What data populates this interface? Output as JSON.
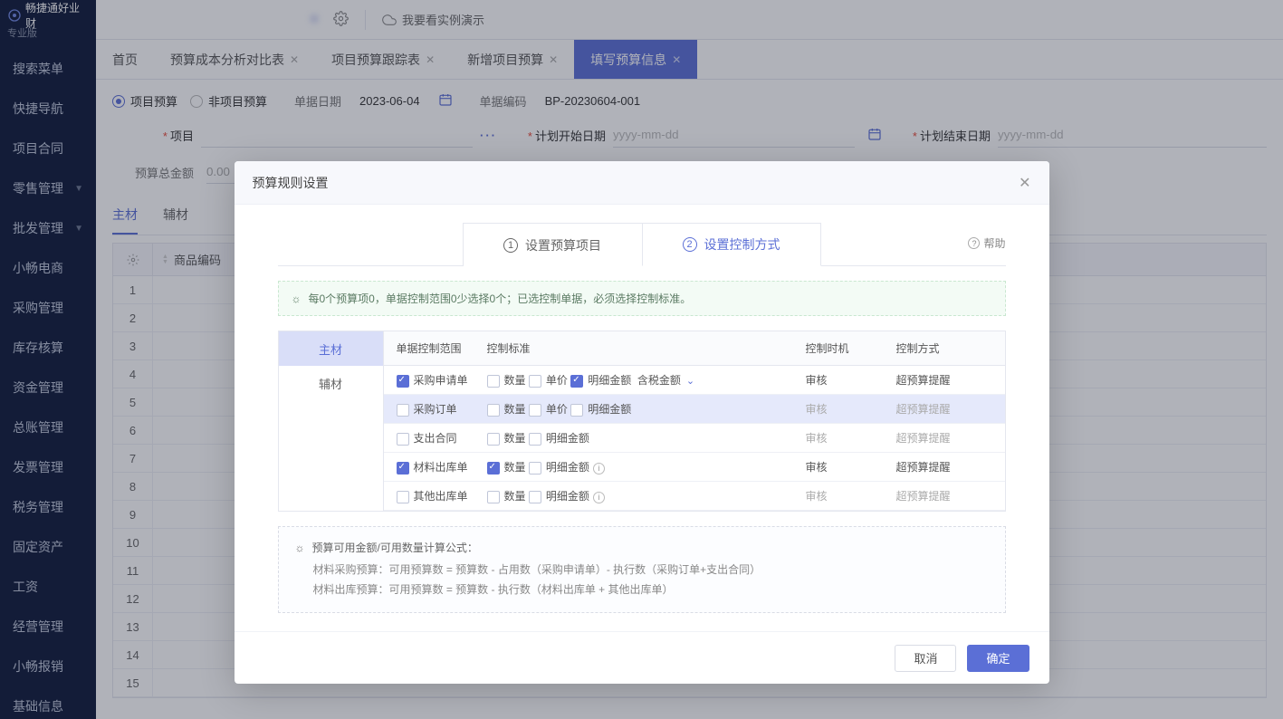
{
  "app": {
    "name": "畅捷通好业财",
    "edition": "专业版",
    "company_placeholder": " "
  },
  "topbar": {
    "demo_text": "我要看实例演示"
  },
  "sidebar": {
    "search": "搜索菜单",
    "items": [
      {
        "label": "快捷导航",
        "expand": false
      },
      {
        "label": "项目合同",
        "expand": false
      },
      {
        "label": "零售管理",
        "expand": true
      },
      {
        "label": "批发管理",
        "expand": true
      },
      {
        "label": "小畅电商",
        "expand": false
      },
      {
        "label": "采购管理",
        "expand": false
      },
      {
        "label": "库存核算",
        "expand": false
      },
      {
        "label": "资金管理",
        "expand": false
      },
      {
        "label": "总账管理",
        "expand": false
      },
      {
        "label": "发票管理",
        "expand": false
      },
      {
        "label": "税务管理",
        "expand": false
      },
      {
        "label": "固定资产",
        "expand": false
      },
      {
        "label": "工资",
        "expand": false
      },
      {
        "label": "经营管理",
        "expand": false
      },
      {
        "label": "小畅报销",
        "expand": false
      },
      {
        "label": "基础信息",
        "expand": false
      }
    ]
  },
  "tabs": [
    {
      "label": "首页",
      "closable": false,
      "active": false
    },
    {
      "label": "预算成本分析对比表",
      "closable": true,
      "active": false
    },
    {
      "label": "项目预算跟踪表",
      "closable": true,
      "active": false
    },
    {
      "label": "新增项目预算",
      "closable": true,
      "active": false
    },
    {
      "label": "填写预算信息",
      "closable": true,
      "active": true
    }
  ],
  "form": {
    "radio1": "项目预算",
    "radio2": "非项目预算",
    "date_label": "单据日期",
    "date_value": "2023-06-04",
    "code_label": "单据编码",
    "code_value": "BP-20230604-001",
    "project_label": "项目",
    "plan_start_label": "计划开始日期",
    "plan_end_label": "计划结束日期",
    "date_placeholder": "yyyy-mm-dd",
    "total_label": "预算总金额",
    "total_value": "0.00"
  },
  "subtabs": {
    "main": "主材",
    "aux": "辅材"
  },
  "grid": {
    "col1": "商品编码",
    "col2": "商品",
    "rows": [
      1,
      2,
      3,
      4,
      5,
      6,
      7,
      8,
      9,
      10,
      11,
      12,
      13,
      14,
      15
    ]
  },
  "modal": {
    "title": "预算规则设置",
    "step1": "设置预算项目",
    "step2": "设置控制方式",
    "help": "帮助",
    "hint": "每0个预算项0，单据控制范围0少选择0个；已选控制单据，必须选择控制标准。",
    "side": {
      "main": "主材",
      "aux": "辅材"
    },
    "cols": {
      "c1": "单据控制范围",
      "c2": "控制标准",
      "c3": "控制时机",
      "c4": "控制方式"
    },
    "rows": [
      {
        "doc": "采购申请单",
        "doc_on": true,
        "qty": false,
        "price": true,
        "detail": true,
        "detail_on": true,
        "tax": "含税金额",
        "tax_dd": true,
        "info": false,
        "timing": "审核",
        "mode": "超预算提醒",
        "muted": false,
        "alt": false
      },
      {
        "doc": "采购订单",
        "doc_on": false,
        "qty": false,
        "price": true,
        "detail": true,
        "detail_on": false,
        "tax": "",
        "tax_dd": false,
        "info": false,
        "timing": "审核",
        "mode": "超预算提醒",
        "muted": true,
        "alt": true
      },
      {
        "doc": "支出合同",
        "doc_on": false,
        "qty": false,
        "price": false,
        "detail": true,
        "detail_on": false,
        "tax": "",
        "tax_dd": false,
        "info": false,
        "timing": "审核",
        "mode": "超预算提醒",
        "muted": true,
        "alt": false
      },
      {
        "doc": "材料出库单",
        "doc_on": true,
        "qty": true,
        "price": false,
        "detail": true,
        "detail_on": false,
        "tax": "",
        "tax_dd": false,
        "info": true,
        "timing": "审核",
        "mode": "超预算提醒",
        "muted": false,
        "alt": false
      },
      {
        "doc": "其他出库单",
        "doc_on": false,
        "qty": false,
        "price": false,
        "detail": true,
        "detail_on": false,
        "tax": "",
        "tax_dd": false,
        "info": true,
        "timing": "审核",
        "mode": "超预算提醒",
        "muted": true,
        "alt": false
      }
    ],
    "std_qty": "数量",
    "std_price": "单价",
    "std_detail": "明细金额",
    "formula_title": "预算可用金额/可用数量计算公式：",
    "formula_l1": "材料采购预算：可用预算数 = 预算数 - 占用数（采购申请单）- 执行数（采购订单+支出合同）",
    "formula_l2": "材料出库预算：可用预算数 = 预算数 - 执行数（材料出库单 + 其他出库单）",
    "cancel": "取消",
    "ok": "确定"
  }
}
